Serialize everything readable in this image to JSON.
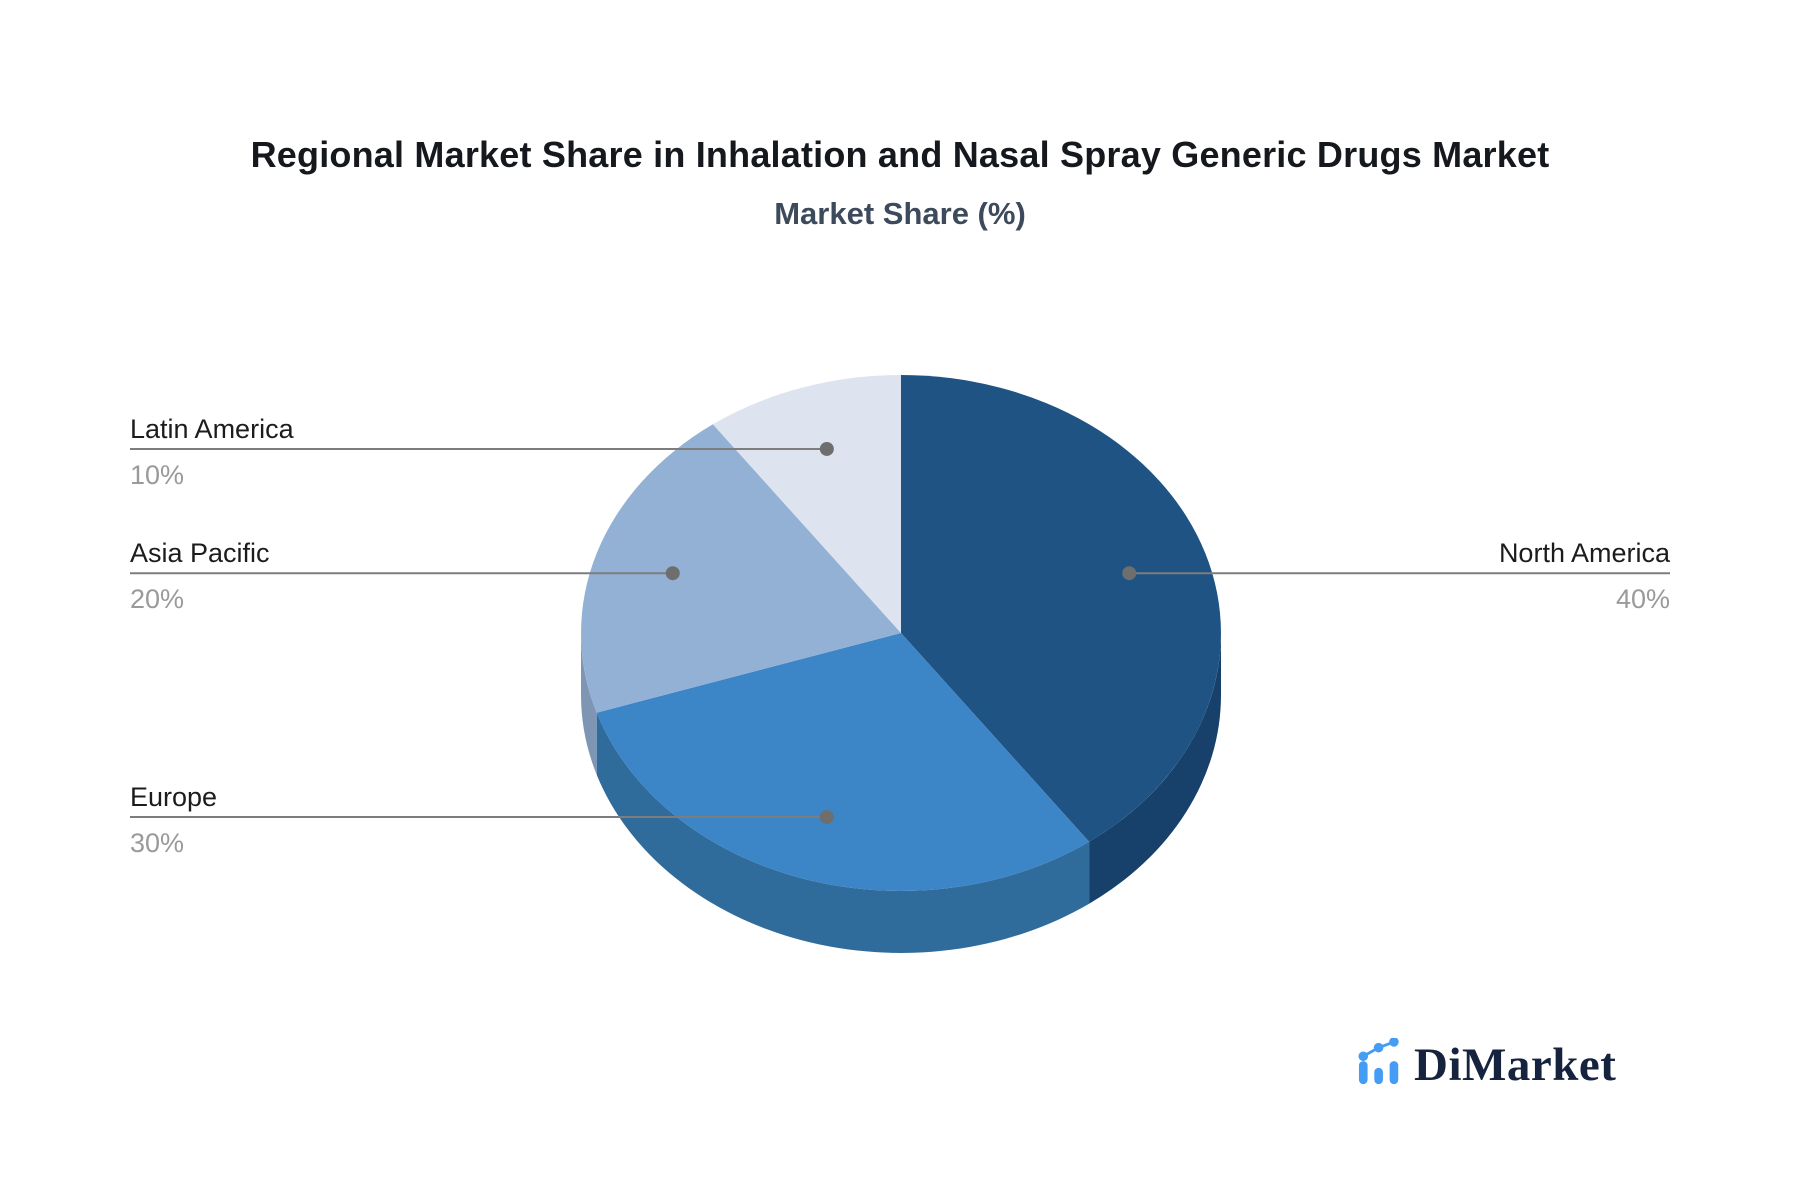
{
  "title": "Regional Market Share in Inhalation and Nasal Spray Generic Drugs Market",
  "subtitle": "Market Share (%)",
  "logo": {
    "text": "DiMarket",
    "icon": "bar-chart-trend-icon"
  },
  "colors": {
    "title": "#15181c",
    "subtitle": "#3d4a5c",
    "region_label": "#1c1c1c",
    "percent_label": "#9a9a9a",
    "leader_line": "#7d7d7d",
    "leader_dot": "#6e6e6e",
    "logo_text": "#16233e",
    "logo_icon_blue": "#459cf5"
  },
  "chart_data": {
    "type": "pie",
    "style": "3d",
    "title": "Regional Market Share in Inhalation and Nasal Spray Generic Drugs Market",
    "value_axis_label": "Market Share (%)",
    "unit": "%",
    "direction": "clockwise",
    "start_angle_deg": 0,
    "legend_position": "none-callout-labels",
    "slices": [
      {
        "label": "North America",
        "value": 40,
        "percent_label": "40%",
        "color": "#1e5384",
        "side_color": "#17416a",
        "callout_side": "right"
      },
      {
        "label": "Europe",
        "value": 30,
        "percent_label": "30%",
        "color": "#3c85c6",
        "side_color": "#2f6b9b",
        "callout_side": "left"
      },
      {
        "label": "Asia Pacific",
        "value": 20,
        "percent_label": "20%",
        "color": "#93b1d4",
        "side_color": "#7e96b3",
        "callout_side": "left"
      },
      {
        "label": "Latin America",
        "value": 10,
        "percent_label": "10%",
        "color": "#dde4f0",
        "side_color": "#c2cfe2",
        "callout_side": "left"
      }
    ]
  }
}
